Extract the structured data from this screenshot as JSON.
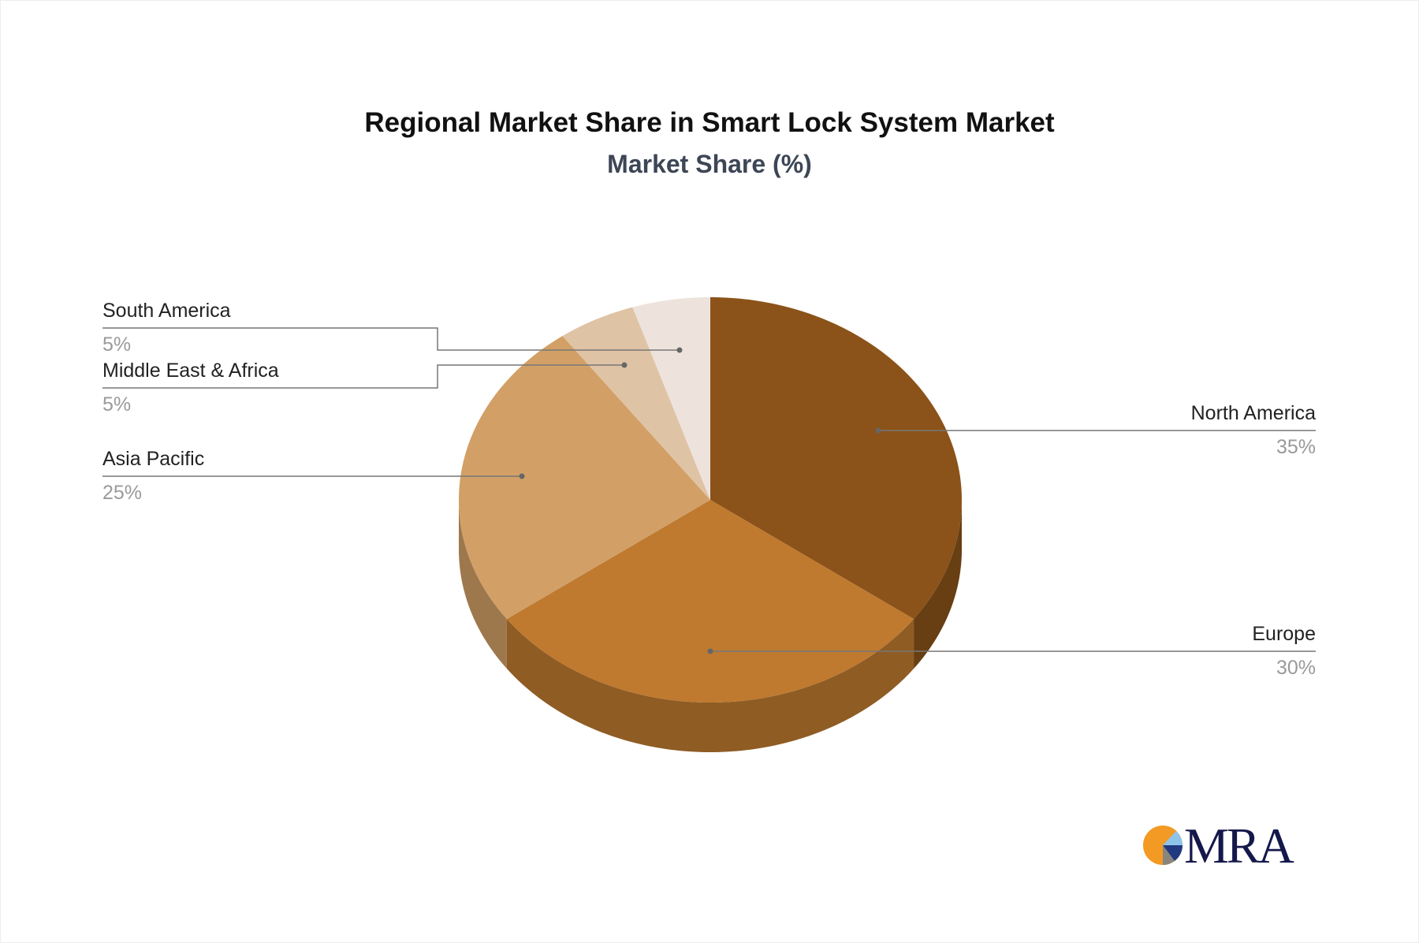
{
  "chart_data": {
    "type": "pie",
    "style": "3d",
    "title": "Regional Market Share in Smart Lock System Market",
    "subtitle": "Market Share (%)",
    "slices": [
      {
        "label": "North America",
        "value": 35,
        "display": "35%",
        "color": "#8B5319"
      },
      {
        "label": "Europe",
        "value": 30,
        "display": "30%",
        "color": "#BF7A30"
      },
      {
        "label": "Asia Pacific",
        "value": 25,
        "display": "25%",
        "color": "#D2A066"
      },
      {
        "label": "Middle East & Africa",
        "value": 5,
        "display": "5%",
        "color": "#DFC3A5"
      },
      {
        "label": "South America",
        "value": 5,
        "display": "5%",
        "color": "#EDE3DC"
      }
    ]
  },
  "logo": {
    "text": "MRA"
  }
}
